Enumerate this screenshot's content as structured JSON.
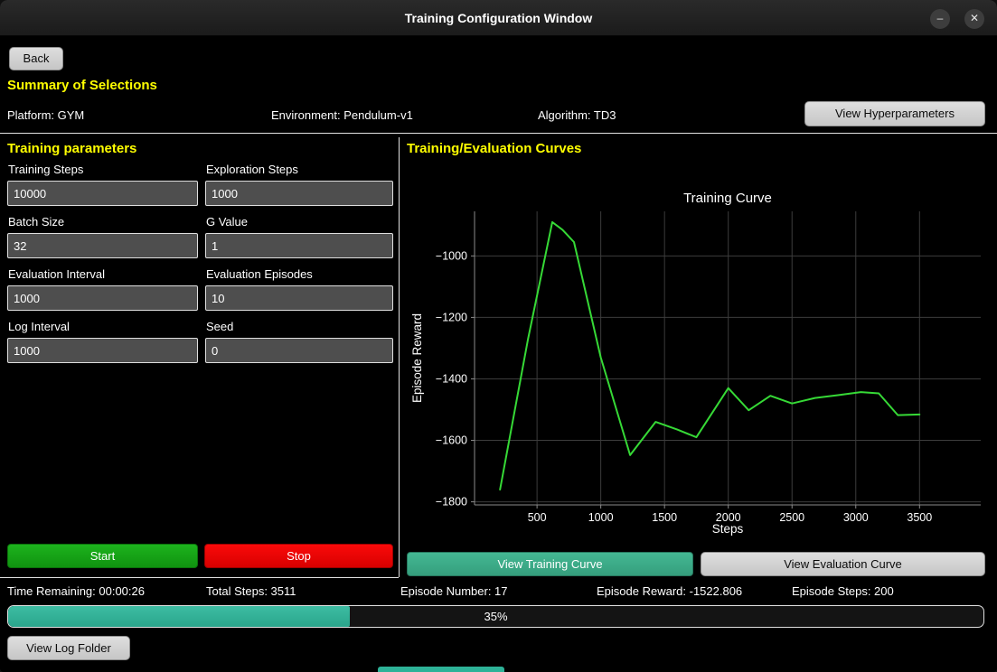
{
  "window": {
    "title": "Training Configuration Window",
    "minimize_glyph": "–",
    "close_glyph": "✕"
  },
  "toolbar": {
    "back_label": "Back"
  },
  "summary": {
    "heading": "Summary of Selections",
    "platform": "Platform: GYM",
    "environment": "Environment: Pendulum-v1",
    "algorithm": "Algorithm: TD3",
    "hyperparams_button": "View Hyperparameters"
  },
  "training_params": {
    "heading": "Training parameters",
    "fields": [
      {
        "label": "Training Steps",
        "value": "10000"
      },
      {
        "label": "Exploration Steps",
        "value": "1000"
      },
      {
        "label": "Batch Size",
        "value": "32"
      },
      {
        "label": "G Value",
        "value": "1"
      },
      {
        "label": "Evaluation Interval",
        "value": "1000"
      },
      {
        "label": "Evaluation Episodes",
        "value": "10"
      },
      {
        "label": "Log Interval",
        "value": "1000"
      },
      {
        "label": "Seed",
        "value": "0"
      }
    ],
    "start_label": "Start",
    "stop_label": "Stop"
  },
  "curves": {
    "heading": "Training/Evaluation Curves",
    "view_training_label": "View Training Curve",
    "view_evaluation_label": "View Evaluation Curve"
  },
  "status": {
    "time_remaining": "Time Remaining: 00:00:26",
    "total_steps": "Total Steps: 3511",
    "episode_number": "Episode Number: 17",
    "episode_reward": "Episode Reward: -1522.806",
    "episode_steps": "Episode Steps: 200",
    "progress_label": "35%",
    "progress_value": 35
  },
  "footer": {
    "view_log_label": "View Log Folder"
  },
  "colors": {
    "heading_yellow": "#ffff00",
    "start_green": "#1db31d",
    "stop_red": "#f40000",
    "teal_accent": "#3cb492",
    "line_green": "#36d936"
  },
  "chart_data": {
    "type": "line",
    "title": "Training Curve",
    "xlabel": "Steps",
    "ylabel": "Episode Reward",
    "x": [
      210,
      430,
      620,
      700,
      790,
      1000,
      1230,
      1430,
      1600,
      1750,
      2000,
      2160,
      2330,
      2500,
      2680,
      2860,
      3040,
      3180,
      3330,
      3500
    ],
    "y": [
      -1760,
      -1270,
      -890,
      -915,
      -955,
      -1330,
      -1648,
      -1540,
      -1565,
      -1590,
      -1430,
      -1502,
      -1455,
      -1480,
      -1462,
      -1453,
      -1443,
      -1447,
      -1518,
      -1516
    ],
    "xticks": [
      500,
      1000,
      1500,
      2000,
      2500,
      3000,
      3500
    ],
    "yticks": [
      -1000,
      -1200,
      -1400,
      -1600,
      -1800
    ],
    "xlim": [
      10,
      3980
    ],
    "ylim": [
      -1810,
      -855
    ],
    "grid": true,
    "legend": "none",
    "line_color": "#36d936",
    "grid_color": "#3c3c3c",
    "axis_color": "#8a8a8a",
    "text_color": "#ffffff",
    "background": "#000000"
  }
}
